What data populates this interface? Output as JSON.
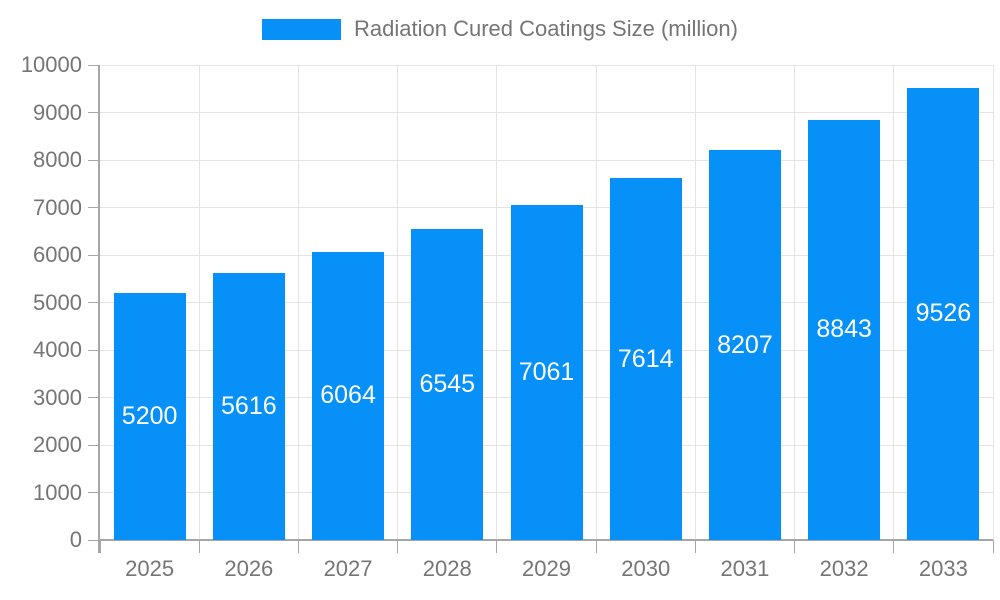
{
  "legend": {
    "label": "Radiation Cured Coatings Size (million)"
  },
  "colors": {
    "bar": "#0690f8",
    "axis": "#a6a6a6",
    "grid": "#e4e4e4",
    "tick_label": "#757575",
    "value_label": "#ffffff"
  },
  "chart_data": {
    "type": "bar",
    "title": "Radiation Cured Coatings Size (million)",
    "categories": [
      "2025",
      "2026",
      "2027",
      "2028",
      "2029",
      "2030",
      "2031",
      "2032",
      "2033"
    ],
    "values": [
      5200,
      5616,
      6064,
      6545,
      7061,
      7614,
      8207,
      8843,
      9526
    ],
    "xlabel": "",
    "ylabel": "",
    "ylim": [
      0,
      10000
    ],
    "ytick_interval": 1000,
    "ytick_labels": [
      "0",
      "1000",
      "2000",
      "3000",
      "4000",
      "5000",
      "6000",
      "7000",
      "8000",
      "9000",
      "10000"
    ],
    "grid": true,
    "legend_position": "top",
    "value_labels": "inside-center"
  }
}
